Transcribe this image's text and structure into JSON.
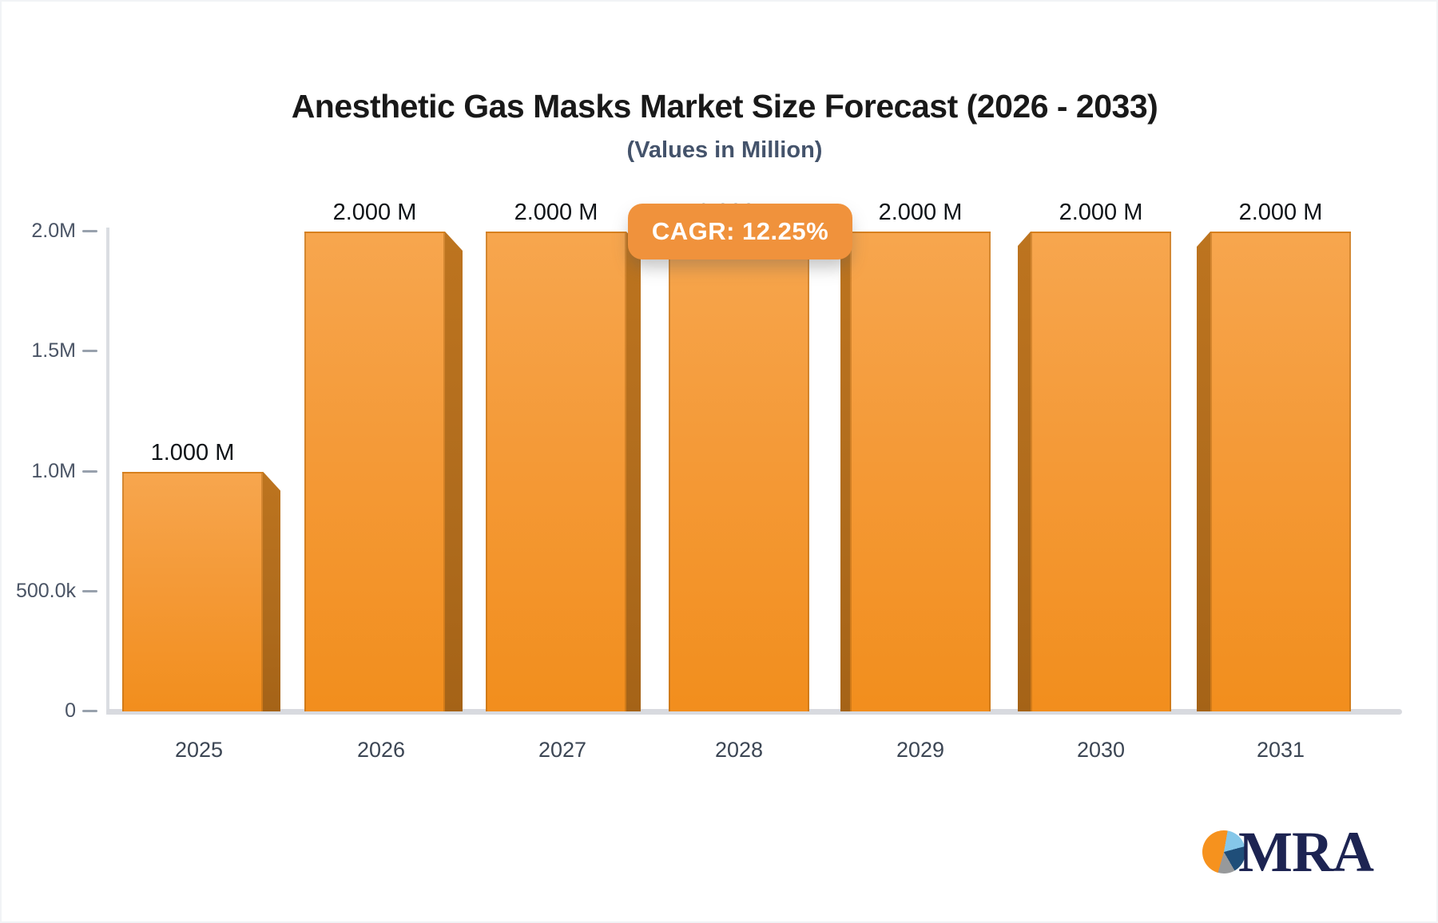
{
  "title": "Anesthetic Gas Masks Market Size Forecast (2026 - 2033)",
  "subtitle": "(Values in Million)",
  "badge": {
    "label": "CAGR: 12.25%",
    "cagr_percent": 12.25,
    "color": "#F0923C"
  },
  "brand": {
    "logo_text": "MRA"
  },
  "colors": {
    "bar_top": "#F7A64E",
    "bar_bottom": "#F28E1D",
    "bar_side": "#B06C1D",
    "axis_gray": "#D8DADF",
    "title_text": "#191919",
    "subtitle_text": "#44536B",
    "tick_text": "#4A5465",
    "logo_navy": "#1D2452"
  },
  "chart_data": {
    "type": "bar",
    "title": "Anesthetic Gas Masks Market Size Forecast (2026 - 2033)",
    "subtitle": "(Values in Million)",
    "categories": [
      "2025",
      "2026",
      "2027",
      "2028",
      "2029",
      "2030",
      "2031"
    ],
    "values_millions": [
      1,
      2,
      2,
      2,
      2,
      2,
      2
    ],
    "bar_labels": [
      "1.000 M",
      "2.000 M",
      "2.000 M",
      "2.000 M",
      "2.000 M",
      "2.000 M",
      "2.000 M"
    ],
    "y_ticks": [
      {
        "label": "2.0M",
        "value_millions": 2
      },
      {
        "label": "1.5M",
        "value_millions": 1.5
      },
      {
        "label": "1.0M",
        "value_millions": 1
      },
      {
        "label": "500.0k",
        "value_millions": 0.5
      },
      {
        "label": "0",
        "value_millions": 0
      }
    ],
    "ylim_millions": [
      0,
      2
    ],
    "xlabel": "",
    "ylabel": "",
    "legend": "none",
    "grid": "off",
    "annotation": "CAGR: 12.25% badge covers the 2028 bar value label"
  }
}
